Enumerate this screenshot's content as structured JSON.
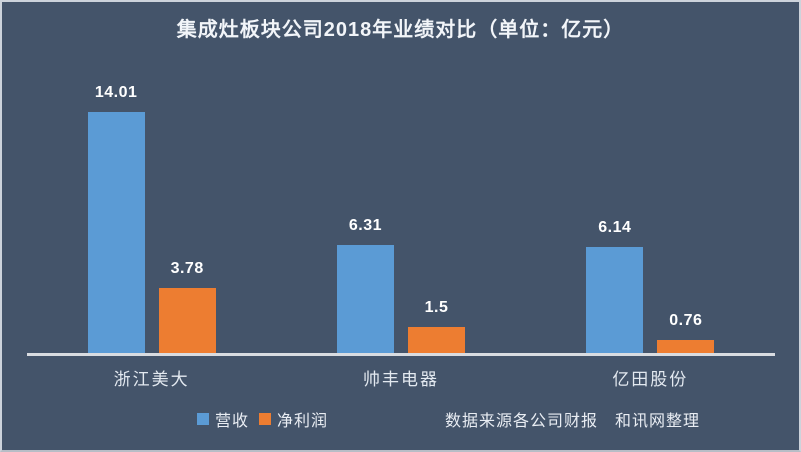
{
  "chart_data": {
    "type": "bar",
    "title": "集成灶板块公司2018年业绩对比（单位：亿元）",
    "unit": "亿元",
    "categories": [
      "浙江美大",
      "帅丰电器",
      "亿田股份"
    ],
    "series": [
      {
        "name": "营收",
        "key": "revenue",
        "color": "#5B9BD5",
        "values": [
          14.01,
          6.31,
          6.14
        ]
      },
      {
        "name": "净利润",
        "key": "net-profit",
        "color": "#ED7D31",
        "values": [
          3.78,
          1.5,
          0.76
        ]
      }
    ],
    "ylim": [
      0,
      14.01
    ],
    "grid": false,
    "legend_position": "bottom",
    "data_labels": true
  },
  "footer": {
    "source": "数据来源各公司财报",
    "editor": "和讯网整理"
  },
  "colors": {
    "background": "#44546A",
    "frame_border": "#CDD3DB",
    "axis_line": "#D9DCE1",
    "revenue": "#5B9BD5",
    "net_profit": "#ED7D31",
    "text": "#F2F5F9"
  }
}
